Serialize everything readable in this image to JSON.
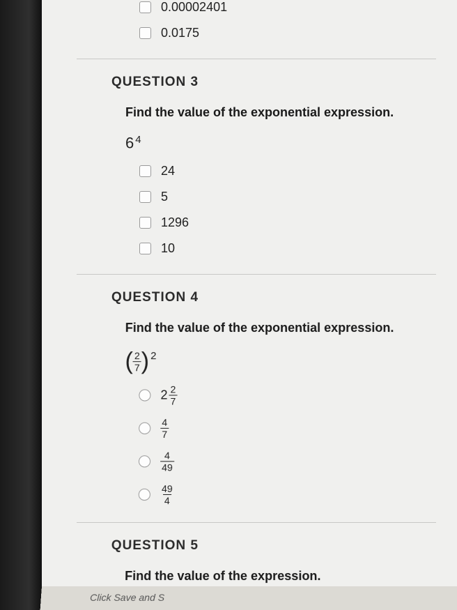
{
  "colors": {
    "page_bg": "#f0f0ee",
    "bezel": "#3a3a3a",
    "divider": "#c8c8c6",
    "text": "#222222",
    "title": "#2b2b2b",
    "checkbox_border": "#9a9a9a"
  },
  "q2_tail": {
    "options": [
      {
        "label": "0.00002401"
      },
      {
        "label": "0.0175"
      }
    ]
  },
  "q3": {
    "title": "QUESTION 3",
    "prompt": "Find the value of the exponential expression.",
    "expr_base": "6",
    "expr_exp": "4",
    "options": [
      {
        "label": "24"
      },
      {
        "label": "5"
      },
      {
        "label": "1296"
      },
      {
        "label": "10"
      }
    ]
  },
  "q4": {
    "title": "QUESTION 4",
    "prompt": "Find the value of the exponential expression.",
    "expr_frac_num": "2",
    "expr_frac_den": "7",
    "expr_exp": "2",
    "options": [
      {
        "type": "mixed",
        "whole": "2",
        "num": "2",
        "den": "7"
      },
      {
        "type": "frac",
        "num": "4",
        "den": "7"
      },
      {
        "type": "frac",
        "num": "4",
        "den": "49"
      },
      {
        "type": "frac",
        "num": "49",
        "den": "4"
      }
    ]
  },
  "q5": {
    "title": "QUESTION 5",
    "prompt": "Find the value of the expression."
  },
  "footer": "Click Save and S"
}
